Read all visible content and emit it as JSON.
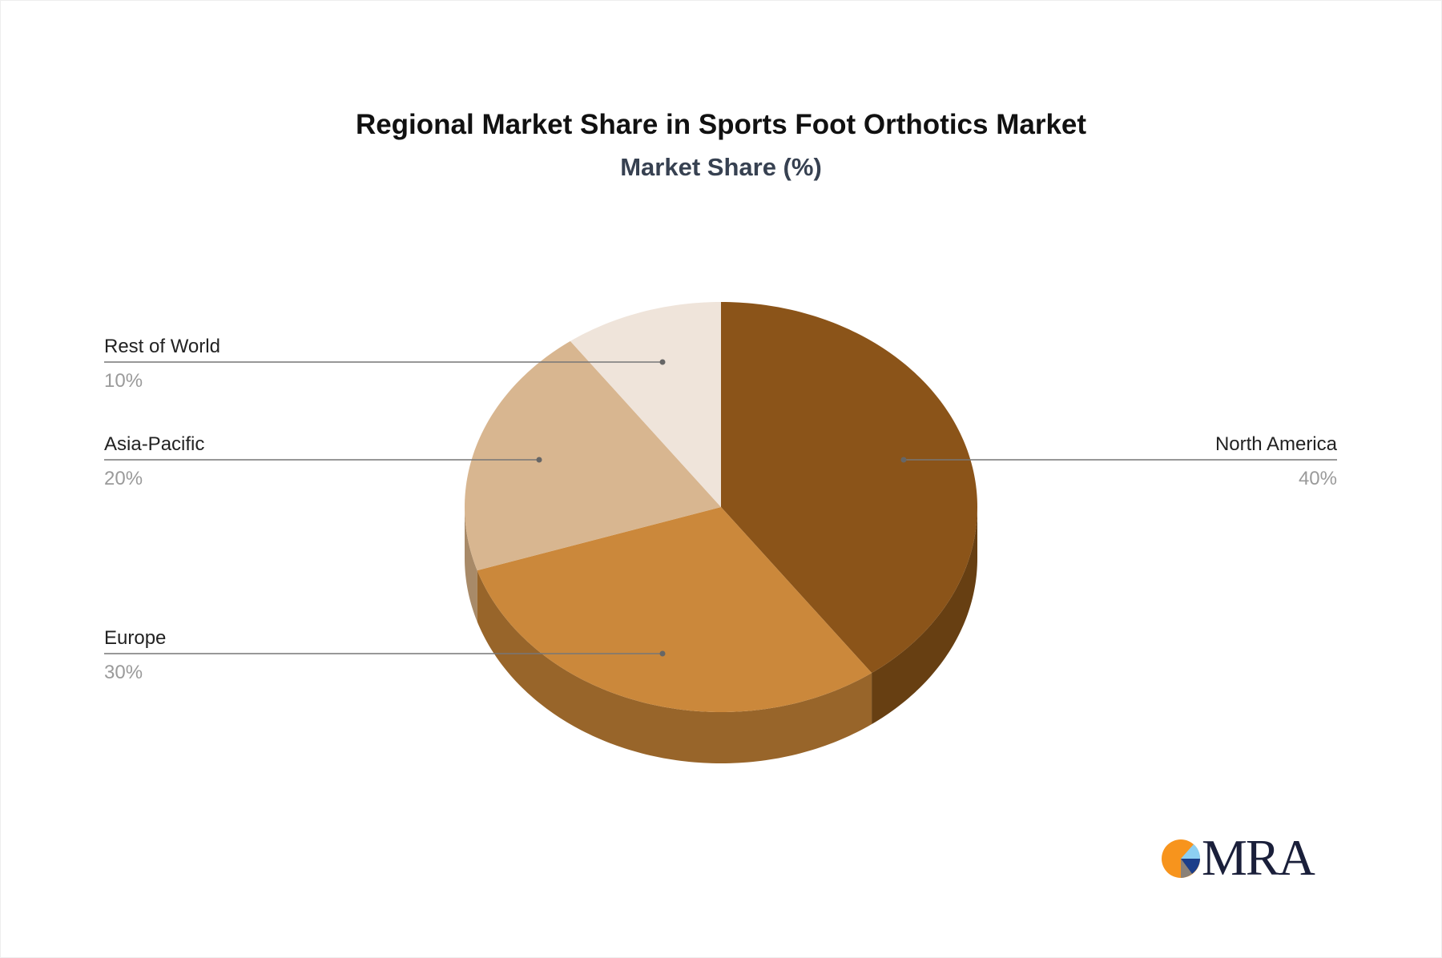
{
  "chart_data": {
    "type": "pie",
    "style": "3d",
    "title": "Regional Market Share in Sports Foot Orthotics Market",
    "subtitle": "Market Share (%)",
    "slices": [
      {
        "label": "North America",
        "value": 40,
        "value_label": "40%",
        "color": "#8B5419",
        "side_color": "#673F12"
      },
      {
        "label": "Europe",
        "value": 30,
        "value_label": "30%",
        "color": "#CB883B",
        "side_color": "#98652A"
      },
      {
        "label": "Asia-Pacific",
        "value": 20,
        "value_label": "20%",
        "color": "#D8B690",
        "side_color": "#A88A68"
      },
      {
        "label": "Rest of World",
        "value": 10,
        "value_label": "10%",
        "color": "#EFE4DA",
        "side_color": "#BDB2A8"
      }
    ]
  },
  "logo": {
    "text": "MRA",
    "colors": [
      "#F7941D",
      "#8DCFF2",
      "#1B3E8A",
      "#8A8178"
    ]
  }
}
